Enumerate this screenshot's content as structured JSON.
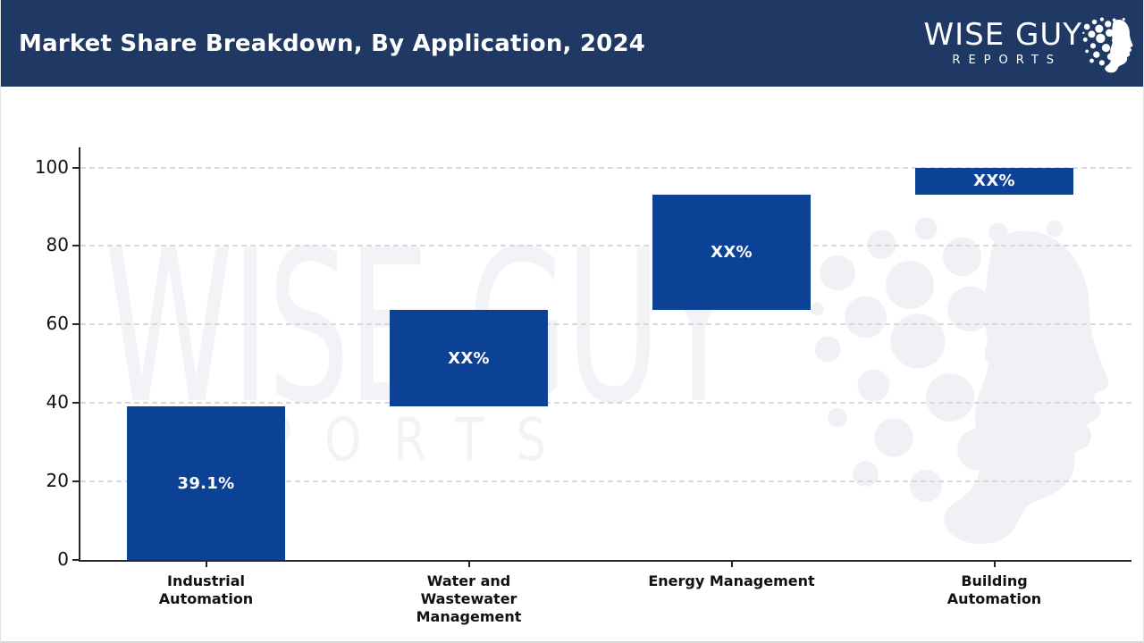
{
  "header": {
    "title": "Market Share Breakdown, By Application, 2024",
    "brand": {
      "line1": "WISE GUY",
      "line2": "REPORTS"
    }
  },
  "watermark": {
    "line1": "WISE GUY",
    "line2": "REPORTS"
  },
  "chart_data": {
    "type": "bar",
    "subtype": "waterfall",
    "title": "Market Share Breakdown, By Application, 2024",
    "categories": [
      "Industrial\nAutomation",
      "Water and\nWastewater\nManagement",
      "Energy Management",
      "Building\nAutomation"
    ],
    "segments": [
      {
        "category": "Industrial Automation",
        "value": 39.1,
        "start": 0,
        "end": 39.1,
        "label": "39.1%"
      },
      {
        "category": "Water and Wastewater Management",
        "value": 24.6,
        "start": 39.1,
        "end": 63.7,
        "label": "XX%"
      },
      {
        "category": "Energy Management",
        "value": 29.4,
        "start": 63.7,
        "end": 93.1,
        "label": "XX%"
      },
      {
        "category": "Building Automation",
        "value": 6.9,
        "start": 93.1,
        "end": 100,
        "label": "XX%"
      }
    ],
    "ylim": [
      0,
      100
    ],
    "yticks": [
      0,
      20,
      40,
      60,
      80,
      100
    ],
    "grid": "horizontal-dashed",
    "legend": "none",
    "bar_color": "#0b4296",
    "bar_label_color": "#ffffff",
    "axis_color": "#262626",
    "gridline_color": "#d9d9d9",
    "header_color": "#1f3864",
    "watermark_color": "#f2f3f6"
  }
}
